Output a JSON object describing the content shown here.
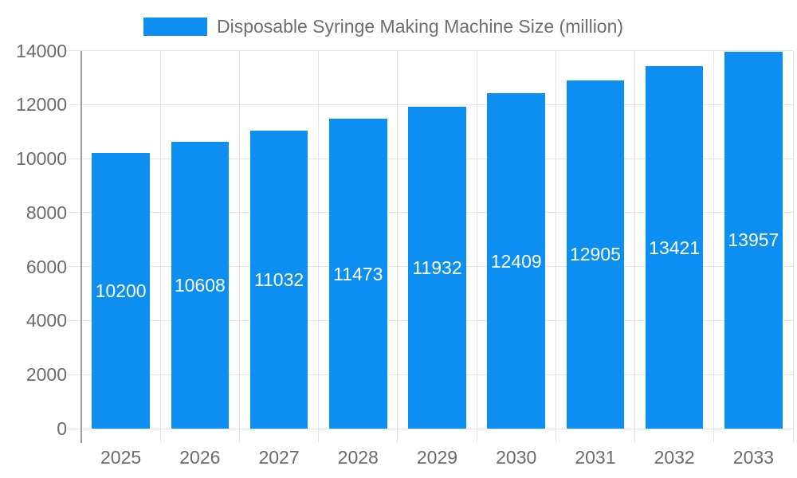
{
  "chart_data": {
    "type": "bar",
    "title": "",
    "categories": [
      "2025",
      "2026",
      "2027",
      "2028",
      "2029",
      "2030",
      "2031",
      "2032",
      "2033"
    ],
    "series": [
      {
        "name": "Disposable Syringe Making Machine Size (million)",
        "values": [
          10200,
          10608,
          11032,
          11473,
          11932,
          12409,
          12905,
          13421,
          13957
        ]
      }
    ],
    "bar_value_labels": [
      "10200",
      "10608",
      "11032",
      "11473",
      "11932",
      "12409",
      "12905",
      "13421",
      "13957"
    ],
    "xlabel": "",
    "ylabel": "",
    "ylim": [
      0,
      14000
    ],
    "yticks": [
      0,
      2000,
      4000,
      6000,
      8000,
      10000,
      12000,
      14000
    ],
    "ytick_labels": [
      "0",
      "2000",
      "4000",
      "6000",
      "8000",
      "10000",
      "12000",
      "14000"
    ],
    "grid": true,
    "legend_position": "top",
    "value_label_position": "center-inside",
    "colors": {
      "bar": "#0d8ff2",
      "grid": "#e4e4e4",
      "axis": "#999999",
      "tick_text": "#6b6b6b",
      "legend_text": "#6e6e6e",
      "bar_label_text": "#ffffff",
      "background": "#ffffff"
    }
  }
}
